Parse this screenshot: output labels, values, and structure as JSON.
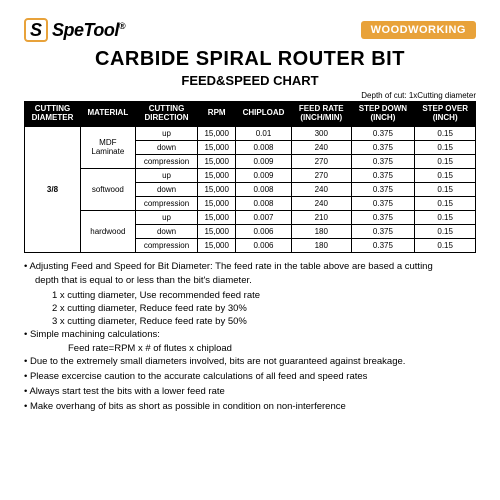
{
  "brand": {
    "s": "S",
    "name": "SpeTool",
    "reg": "®"
  },
  "badge": "WOODWORKING",
  "title": "CARBIDE SPIRAL ROUTER BIT",
  "subtitle": "FEED&SPEED CHART",
  "depth_note": "Depth of cut: 1xCutting diameter",
  "columns": [
    "CUTTING\nDIAMETER",
    "MATERIAL",
    "CUTTING\nDIRECTION",
    "RPM",
    "CHIPLOAD",
    "FEED RATE\n(INCH/MIN)",
    "STEP DOWN\n(INCH)",
    "STEP OVER\n(INCH)"
  ],
  "diameter": "3/8",
  "groups": [
    {
      "material": "MDF\nLaminate",
      "rows": [
        [
          "up",
          "15,000",
          "0.01",
          "300",
          "0.375",
          "0.15"
        ],
        [
          "down",
          "15,000",
          "0.008",
          "240",
          "0.375",
          "0.15"
        ],
        [
          "compression",
          "15,000",
          "0.009",
          "270",
          "0.375",
          "0.15"
        ]
      ]
    },
    {
      "material": "softwood",
      "rows": [
        [
          "up",
          "15,000",
          "0.009",
          "270",
          "0.375",
          "0.15"
        ],
        [
          "down",
          "15,000",
          "0.008",
          "240",
          "0.375",
          "0.15"
        ],
        [
          "compression",
          "15,000",
          "0.008",
          "240",
          "0.375",
          "0.15"
        ]
      ]
    },
    {
      "material": "hardwood",
      "rows": [
        [
          "up",
          "15,000",
          "0.007",
          "210",
          "0.375",
          "0.15"
        ],
        [
          "down",
          "15,000",
          "0.006",
          "180",
          "0.375",
          "0.15"
        ],
        [
          "compression",
          "15,000",
          "0.006",
          "180",
          "0.375",
          "0.15"
        ]
      ]
    }
  ],
  "notes": {
    "b1": "• Adjusting Feed and Speed for Bit Diameter: The feed rate in the table above are based a cutting",
    "b1b": "depth that is equal to or less than the bit's diameter.",
    "i1": "1 x cutting diameter, Use recommended feed rate",
    "i2": "2 x cutting diameter, Reduce feed rate by 30%",
    "i3": "3 x cutting diameter, Reduce feed rate by 50%",
    "b2": "• Simple machining calculations:",
    "i4": "Feed rate=RPM x # of flutes x chipload",
    "b3": "• Due to the extremely small diameters involved, bits are not guaranteed against breakage.",
    "b4": "• Please excercise caution to the accurate calculations of all feed and speed rates",
    "b5": "• Always start test the bits with a lower feed rate",
    "b6": "• Make overhang of bits as short as possible in condition on non-interference"
  }
}
